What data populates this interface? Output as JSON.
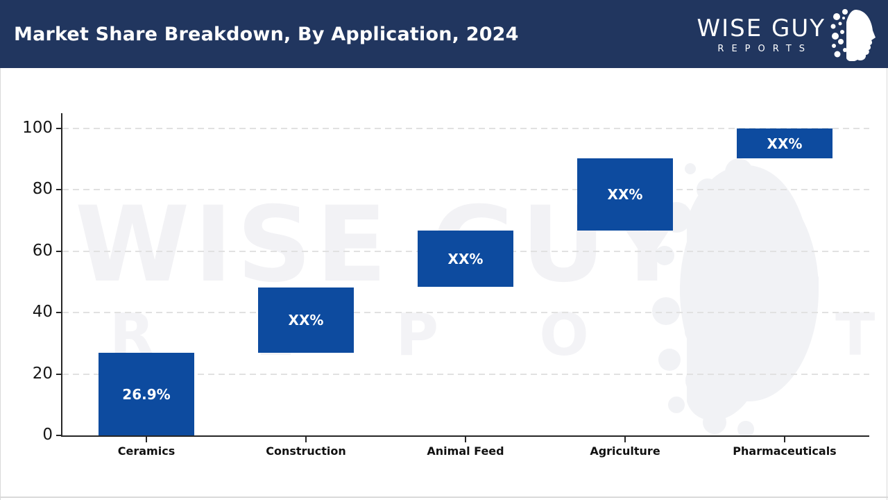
{
  "header": {
    "title": "Market Share Breakdown, By Application, 2024",
    "bg_color": "#21365f",
    "logo": {
      "line1": "WISE GUY",
      "line2": "REPORTS"
    }
  },
  "watermark": {
    "line1": "WISE GUY",
    "line2": "R E P O R T S"
  },
  "chart_data": {
    "type": "bar",
    "subtype": "waterfall-floating-bars",
    "title": "Market Share Breakdown, By Application, 2024",
    "categories": [
      "Ceramics",
      "Construction",
      "Animal Feed",
      "Agriculture",
      "Pharmaceuticals"
    ],
    "segments": [
      {
        "category": "Ceramics",
        "start": 0,
        "end": 26.9,
        "label": "26.9%"
      },
      {
        "category": "Construction",
        "start": 26.9,
        "end": 48.3,
        "label": "XX%"
      },
      {
        "category": "Animal Feed",
        "start": 48.3,
        "end": 66.7,
        "label": "XX%"
      },
      {
        "category": "Agriculture",
        "start": 66.7,
        "end": 90.2,
        "label": "XX%"
      },
      {
        "category": "Pharmaceuticals",
        "start": 90.2,
        "end": 100,
        "label": "XX%"
      }
    ],
    "yticks": [
      0,
      20,
      40,
      60,
      80,
      100
    ],
    "ylim": [
      0,
      105
    ],
    "xlabel": "",
    "ylabel": "",
    "grid": "horizontal-dashed",
    "legend": "none",
    "bar_color": "#0d4b9f",
    "bar_label_color": "#ffffff"
  }
}
